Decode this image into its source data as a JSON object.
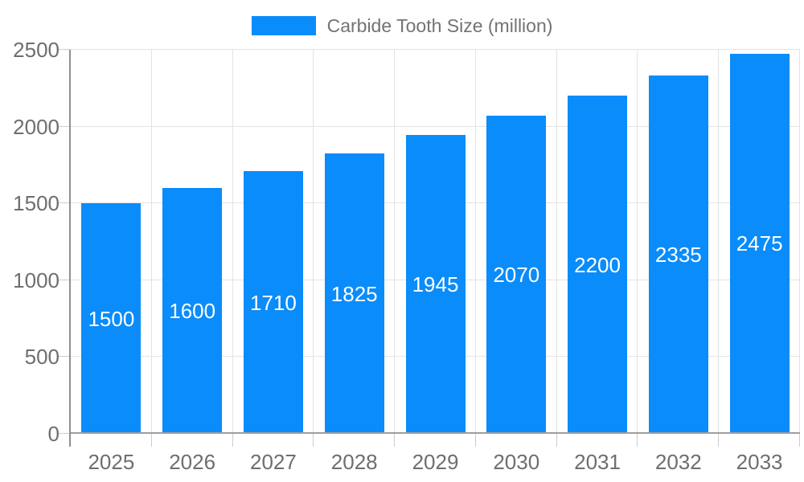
{
  "chart_data": {
    "type": "bar",
    "title": "Carbide Tooth Size (million)",
    "legend": {
      "position": "top",
      "label": "Carbide Tooth Size (million)"
    },
    "categories": [
      "2025",
      "2026",
      "2027",
      "2028",
      "2029",
      "2030",
      "2031",
      "2032",
      "2033"
    ],
    "series": [
      {
        "name": "Carbide Tooth Size (million)",
        "values": [
          1500,
          1600,
          1710,
          1825,
          1945,
          2070,
          2200,
          2335,
          2475
        ]
      }
    ],
    "value_labels_shown": true,
    "xlabel": "",
    "ylabel": "",
    "ylim": [
      0,
      2500
    ],
    "yticks": [
      0,
      500,
      1000,
      1500,
      2000,
      2500
    ],
    "grid": true,
    "colors": {
      "bar": "#0a8cfa",
      "value_label": "#ffffff",
      "axis_label": "#6e6e6e",
      "legend_text": "#737373",
      "gridline": "#e3e3e3",
      "axis_line": "#8f8f8f",
      "x_axis_line": "#9e9e9e",
      "tick": "#cccccc",
      "background": "#ffffff"
    }
  }
}
